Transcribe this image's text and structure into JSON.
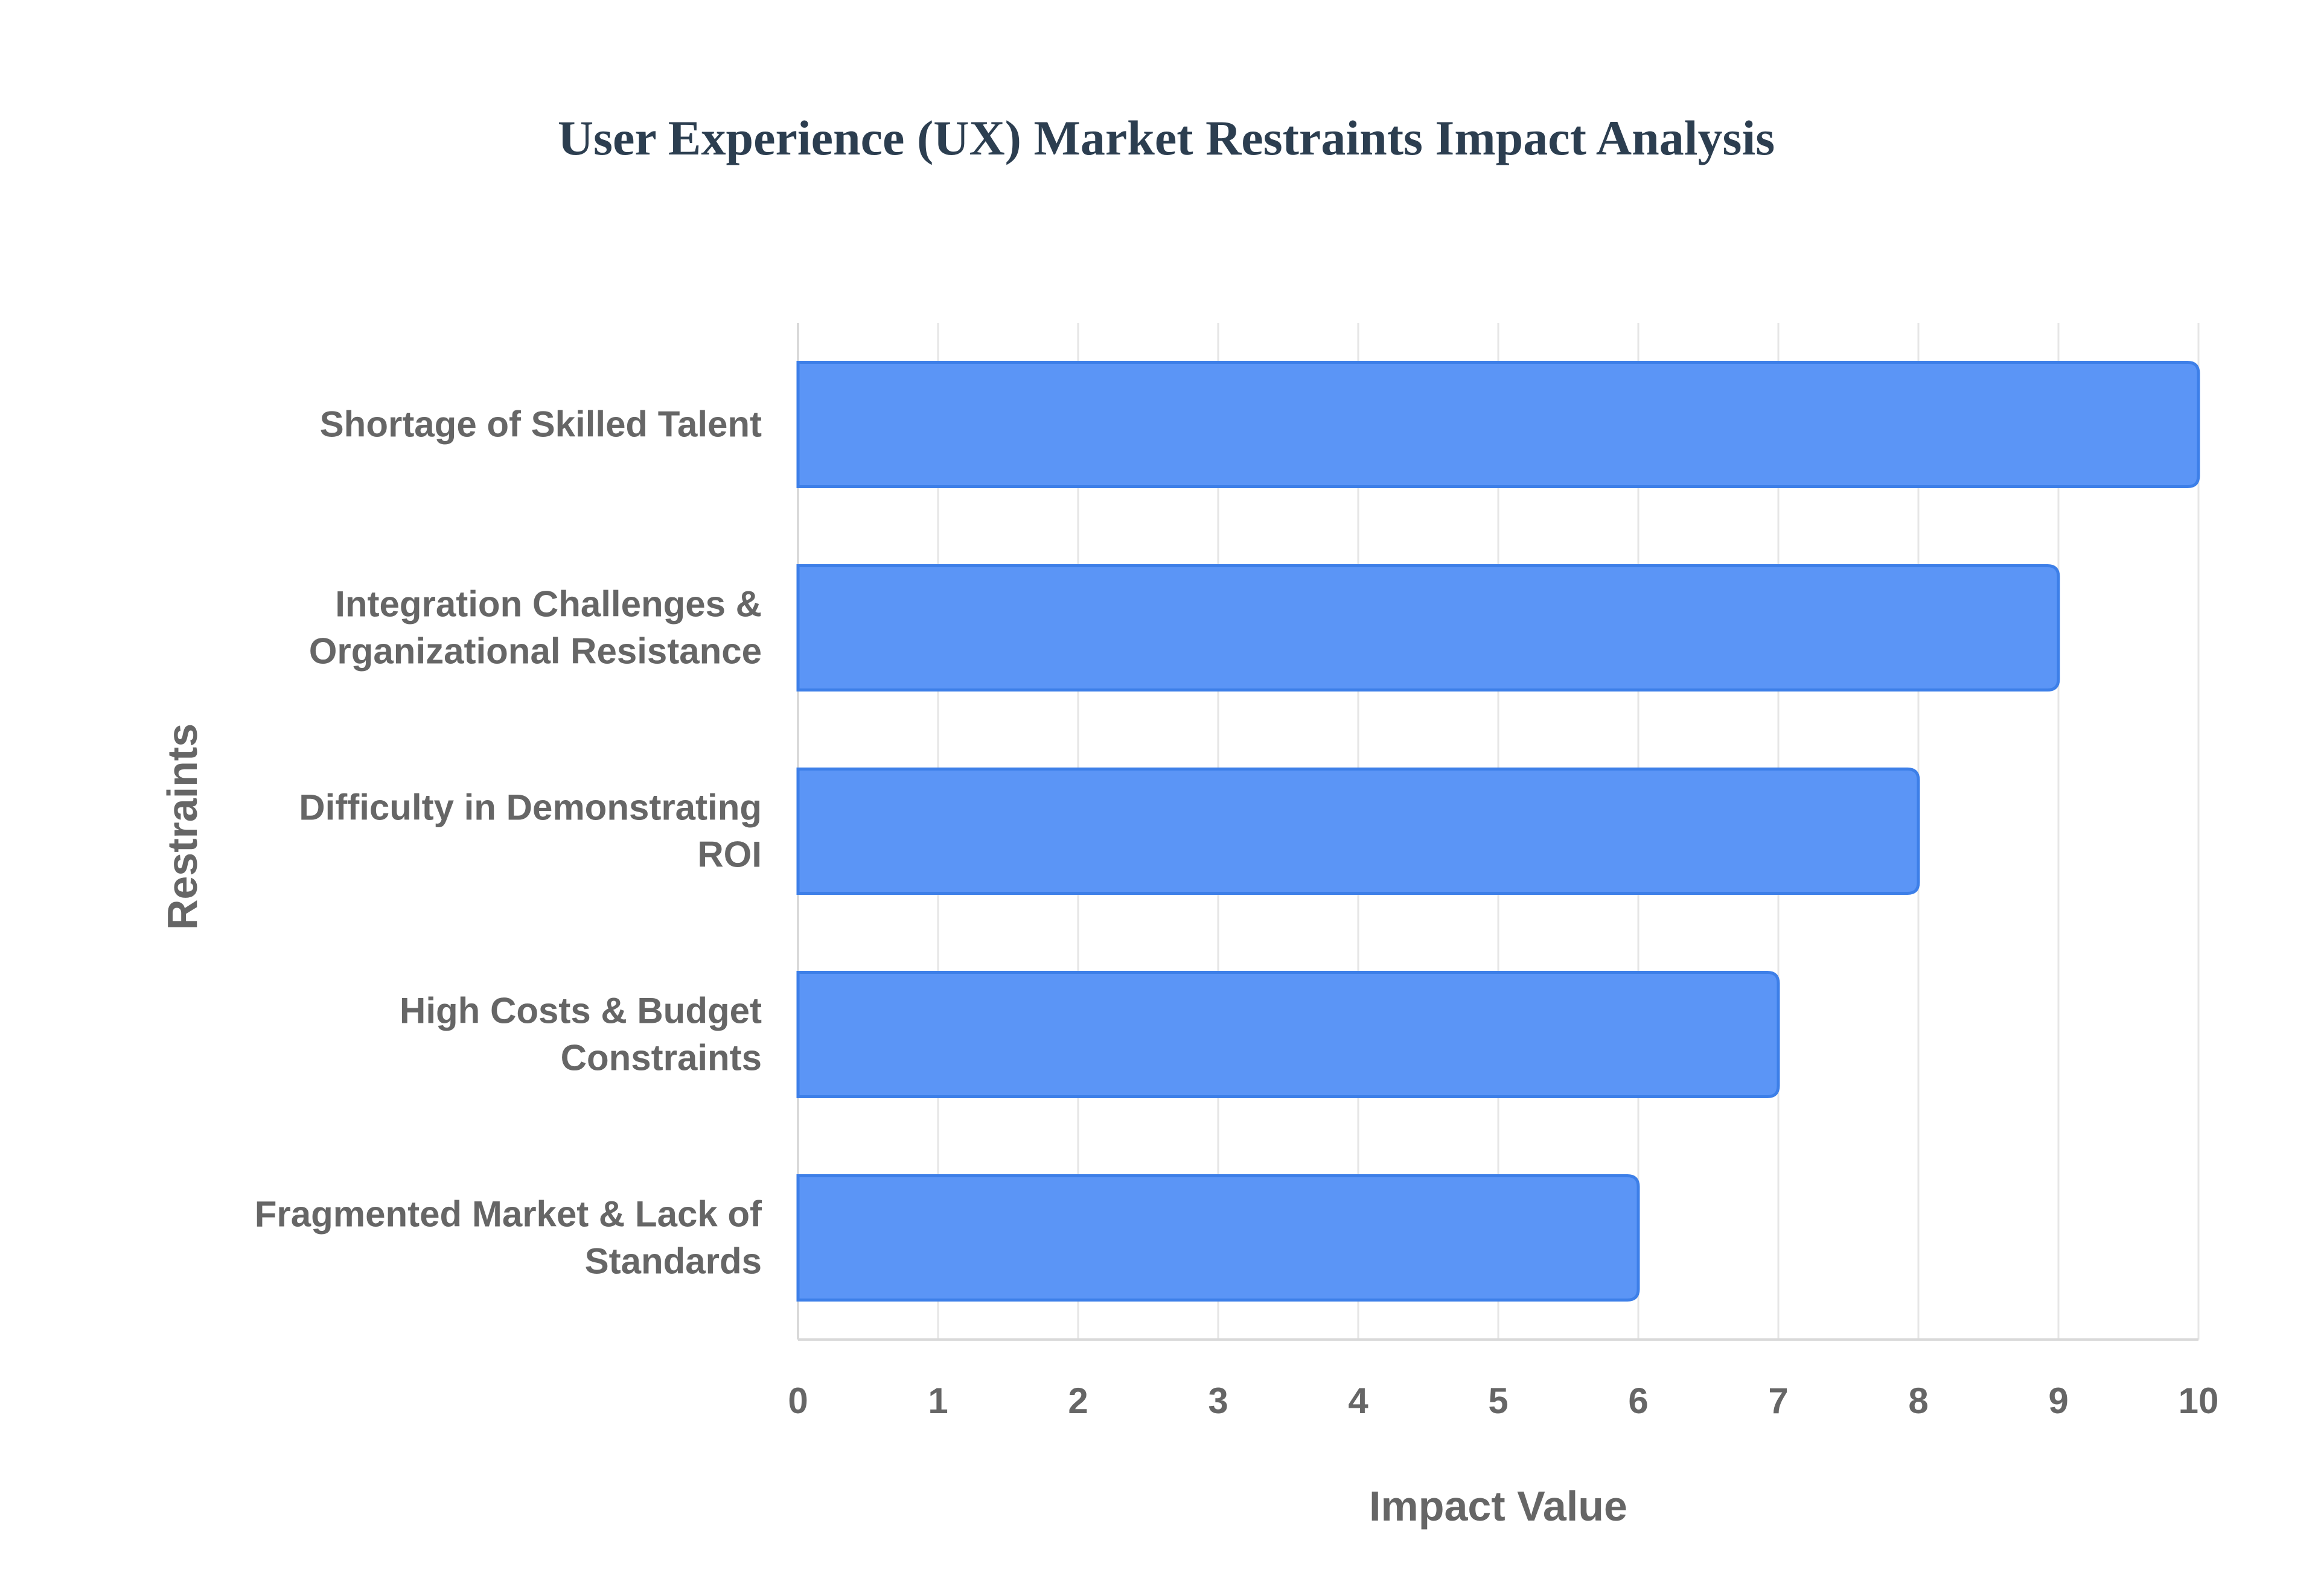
{
  "chart_data": {
    "type": "bar",
    "orientation": "horizontal",
    "title": "User Experience (UX) Market Restraints Impact Analysis",
    "xlabel": "Impact Value",
    "ylabel": "Restraints",
    "categories": [
      [
        "Shortage of Skilled Talent"
      ],
      [
        "Integration Challenges &",
        "Organizational Resistance"
      ],
      [
        "Difficulty in Demonstrating",
        "ROI"
      ],
      [
        "High Costs & Budget",
        "Constraints"
      ],
      [
        "Fragmented Market & Lack of",
        "Standards"
      ]
    ],
    "values": [
      10,
      9,
      8,
      7,
      6
    ],
    "xlim": [
      0,
      10
    ],
    "xticks": [
      "0",
      "1",
      "2",
      "3",
      "4",
      "5",
      "6",
      "7",
      "8",
      "9",
      "10"
    ],
    "grid": true,
    "legend": "none"
  },
  "colors": {
    "bar_fill": "#5b95f6",
    "bar_stroke": "#3d7fe8",
    "grid": "#e6e6e6",
    "axis_line": "#d9d9d9",
    "text": "#666666",
    "title": "#2c3e50"
  }
}
